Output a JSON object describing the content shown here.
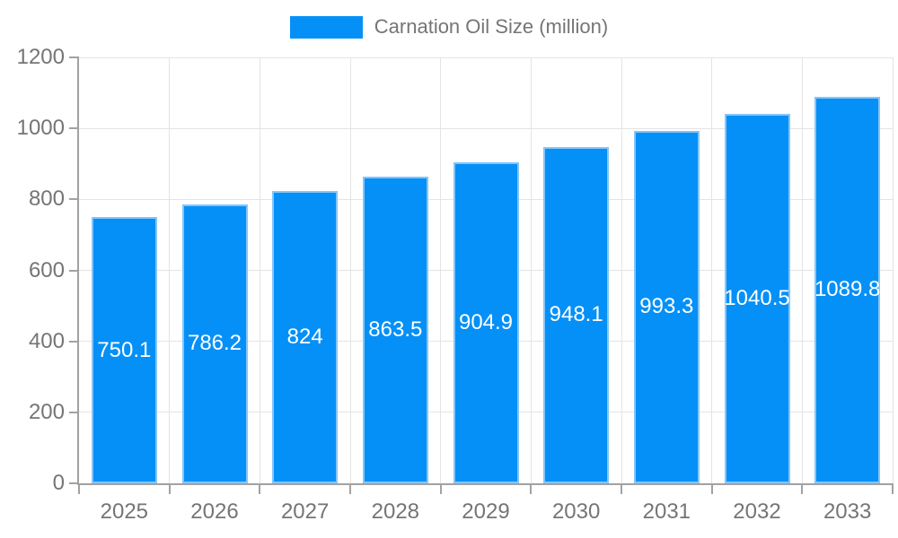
{
  "chart_data": {
    "type": "bar",
    "title": "",
    "series_name": "Carnation Oil Size (million)",
    "categories": [
      "2025",
      "2026",
      "2027",
      "2028",
      "2029",
      "2030",
      "2031",
      "2032",
      "2033"
    ],
    "series": [
      {
        "name": "Carnation Oil Size (million)",
        "values": [
          750.1,
          786.2,
          824,
          863.5,
          904.9,
          948.1,
          993.3,
          1040.5,
          1089.8
        ],
        "value_labels": [
          "750.1",
          "786.2",
          "824",
          "863.5",
          "904.9",
          "948.1",
          "993.3",
          "1040.5",
          "1089.8"
        ]
      }
    ],
    "xlabel": "",
    "ylabel": "",
    "ylim": [
      0,
      1200
    ],
    "yticks": [
      0,
      200,
      400,
      600,
      800,
      1000,
      1200
    ],
    "grid": true,
    "legend_position": "top-center",
    "value_labels_inside_bars": true,
    "colors": {
      "bar": "#0590f7",
      "bar_border": "#85c5f9",
      "grid": "#e4e4e4",
      "axis": "#a2a2a2",
      "text": "#757575",
      "value_text": "#ffffff",
      "background": "#ffffff"
    }
  }
}
